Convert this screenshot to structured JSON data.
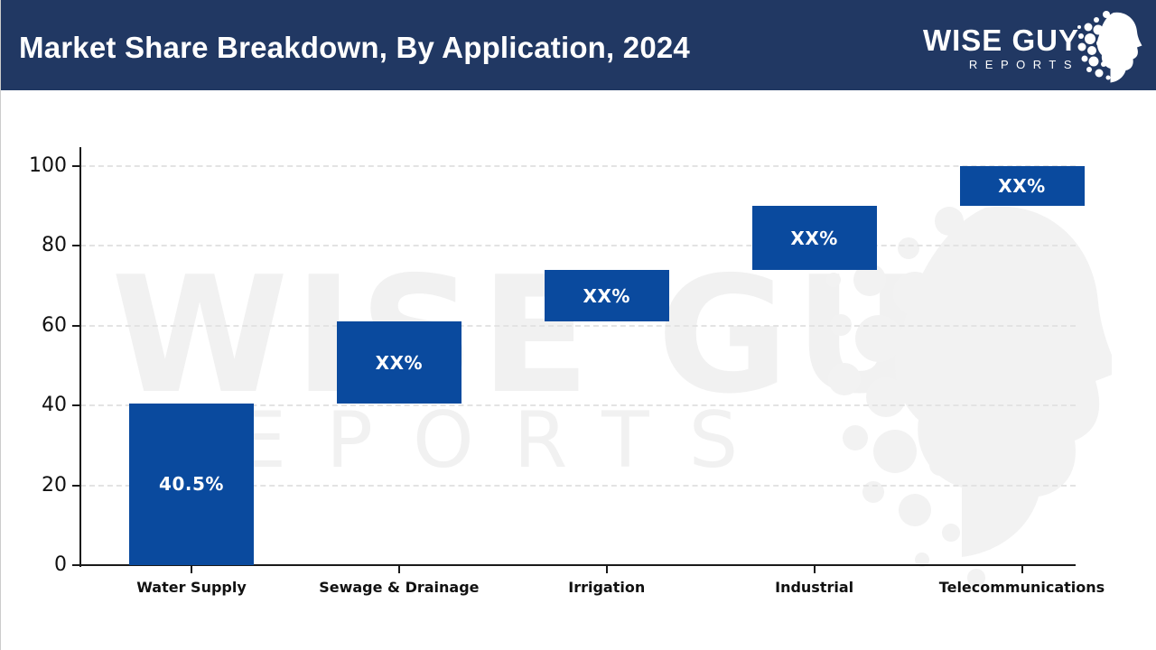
{
  "header": {
    "title": "Market Share Breakdown, By Application, 2024",
    "logo": {
      "brand_top": "WISE GUY",
      "brand_bottom": "REPORTS"
    }
  },
  "watermark": {
    "line1": "WISE GUY",
    "line2": "REPORTS"
  },
  "chart_data": {
    "type": "bar",
    "subtype": "waterfall",
    "title": "Market Share Breakdown, By Application, 2024",
    "categories": [
      "Water Supply",
      "Sewage & Drainage",
      "Irrigation",
      "Industrial",
      "Telecommunications"
    ],
    "segments": [
      {
        "category": "Water Supply",
        "start": 0,
        "end": 40.5,
        "label": "40.5%"
      },
      {
        "category": "Sewage & Drainage",
        "start": 40.5,
        "end": 61,
        "label": "XX%"
      },
      {
        "category": "Irrigation",
        "start": 61,
        "end": 74,
        "label": "XX%"
      },
      {
        "category": "Industrial",
        "start": 74,
        "end": 90,
        "label": "XX%"
      },
      {
        "category": "Telecommunications",
        "start": 90,
        "end": 100,
        "label": "XX%"
      }
    ],
    "yticks": [
      0,
      20,
      40,
      60,
      80,
      100
    ],
    "ylim": [
      0,
      104
    ],
    "xlabel": "",
    "ylabel": "",
    "grid": true,
    "legend": false,
    "bar_color": "#0A4A9E",
    "bar_label_color": "#ffffff",
    "axis_color": "#1a1a1a",
    "header_color": "#213863"
  }
}
